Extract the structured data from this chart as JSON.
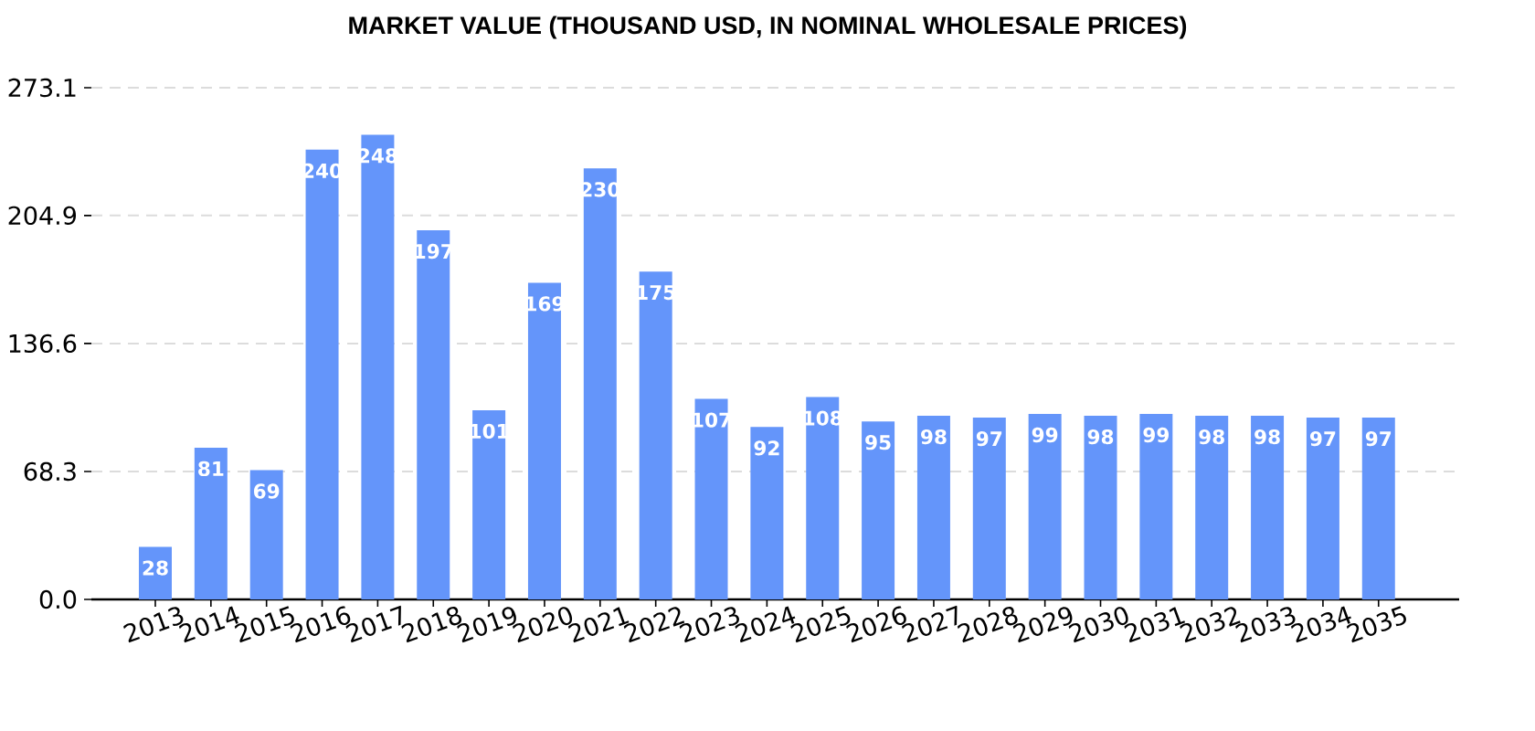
{
  "chart_data": {
    "type": "bar",
    "title": "MARKET VALUE (THOUSAND USD, IN NOMINAL WHOLESALE PRICES)",
    "categories": [
      "2013",
      "2014",
      "2015",
      "2016",
      "2017",
      "2018",
      "2019",
      "2020",
      "2021",
      "2022",
      "2023",
      "2024",
      "2025",
      "2026",
      "2027",
      "2028",
      "2029",
      "2030",
      "2031",
      "2032",
      "2033",
      "2034",
      "2035"
    ],
    "values": [
      28,
      81,
      69,
      240,
      248,
      197,
      101,
      169,
      230,
      175,
      107,
      92,
      108,
      95,
      98,
      97,
      99,
      98,
      99,
      98,
      98,
      97,
      97
    ],
    "color": "#6495fa",
    "ylim": [
      0,
      273.1
    ],
    "yticks": [
      {
        "value": 0,
        "label": "0.0"
      },
      68.3,
      136.6,
      204.9,
      273.1
    ],
    "grid": "y",
    "data_labels": true
  }
}
